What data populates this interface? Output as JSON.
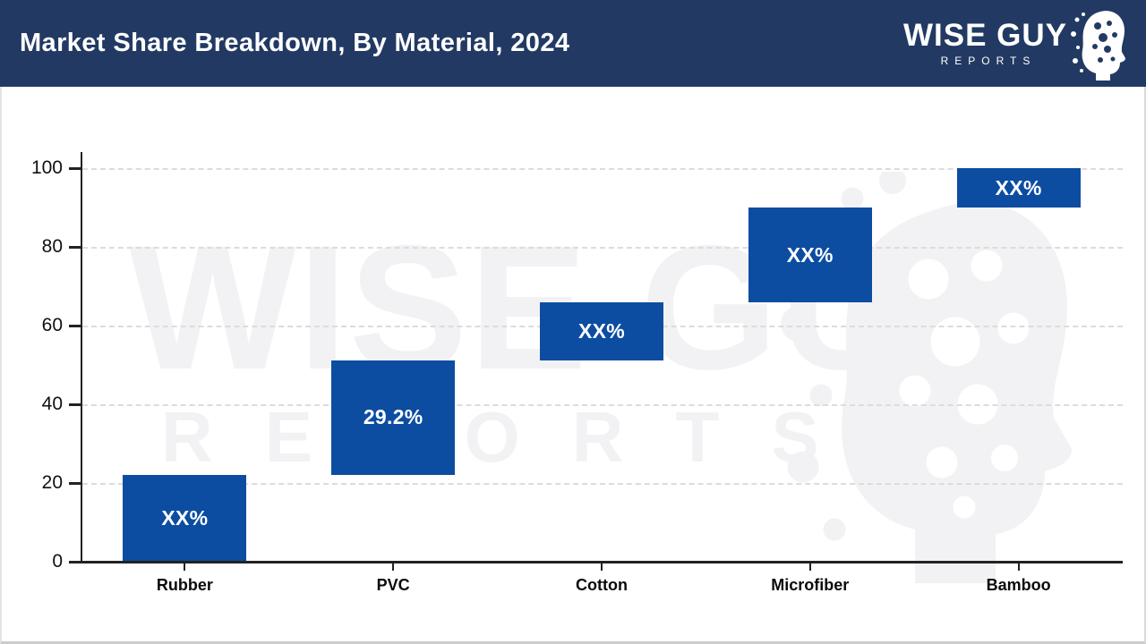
{
  "header": {
    "title": "Market Share Breakdown, By Material, 2024",
    "logo": {
      "line1": "WISE GUY",
      "line2": "REPORTS"
    }
  },
  "watermark": {
    "line1": "WISE GUY",
    "line2": "REPORTS"
  },
  "colors": {
    "header_bg": "#223A63",
    "bar": "#0C4DA2",
    "bar_label": "#FFFFFF",
    "gridline": "#DCDCDC",
    "axis": "#222222",
    "watermark": "#F2F2F4"
  },
  "chart_data": {
    "type": "waterfall",
    "title": "Market Share Breakdown, By Material, 2024",
    "categories": [
      "Rubber",
      "PVC",
      "Cotton",
      "Microfiber",
      "Bamboo"
    ],
    "segments": [
      {
        "category": "Rubber",
        "start": 0,
        "end": 22,
        "label": "XX%"
      },
      {
        "category": "PVC",
        "start": 22,
        "end": 51.2,
        "label": "29.2%"
      },
      {
        "category": "Cotton",
        "start": 51.2,
        "end": 65.8,
        "label": "XX%"
      },
      {
        "category": "Microfiber",
        "start": 65.8,
        "end": 90,
        "label": "XX%"
      },
      {
        "category": "Bamboo",
        "start": 90,
        "end": 100,
        "label": "XX%"
      }
    ],
    "xlabel": "",
    "ylabel": "",
    "ylim": [
      0,
      100
    ],
    "yticks": [
      0,
      20,
      40,
      60,
      80,
      100
    ],
    "grid": "dashed-horizontal",
    "legend": "none"
  }
}
